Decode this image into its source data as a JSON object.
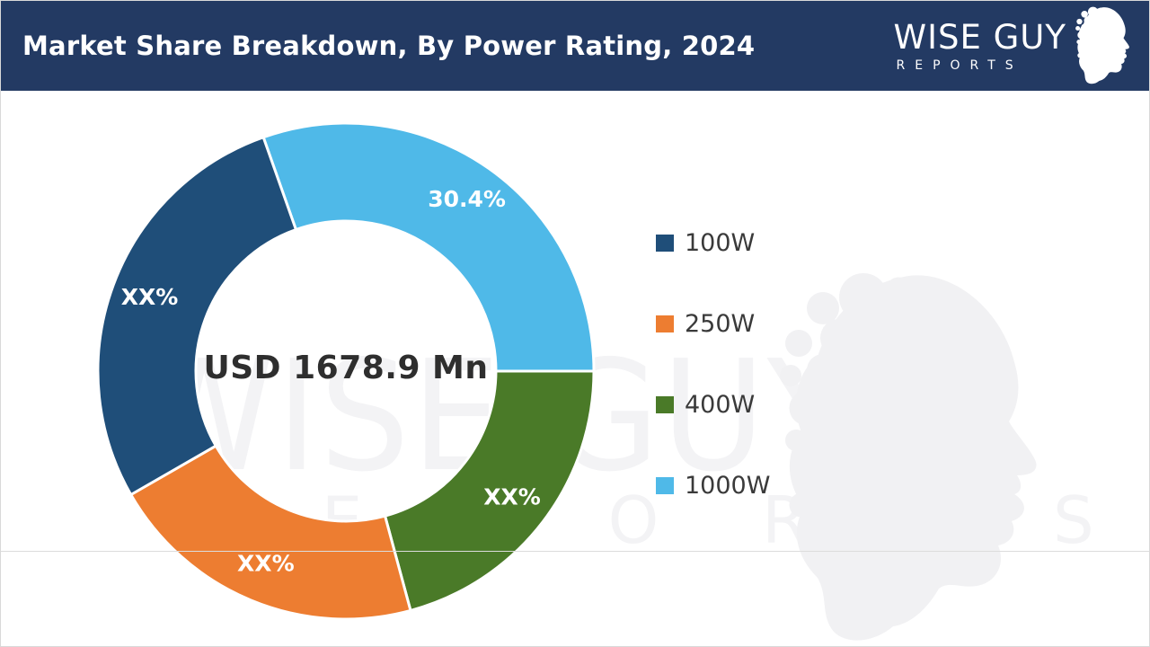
{
  "header": {
    "title": "Market Share Breakdown, By Power Rating, 2024",
    "logo": {
      "line1": "WISE GUY",
      "line2": "REPORTS"
    }
  },
  "watermark": {
    "line1": "WISE GUY",
    "line2": "R E P O R T S"
  },
  "colors": {
    "header_bg": "#233A63",
    "watermark": "#f2f2f4",
    "center_text": "#2e2e2e",
    "legend_text": "#3a3a3a",
    "slice_gap_stroke": "#ffffff"
  },
  "chart_data": {
    "type": "pie",
    "donut": true,
    "title": "Market Share Breakdown, By Power Rating, 2024",
    "center_label": "USD 1678.9 Mn",
    "legend_position": "right",
    "start_angle_deg": -19.44,
    "clockwise": true,
    "inner_radius_ratio": 0.605,
    "segments": [
      {
        "label": "100W",
        "display_value": "XX%",
        "estimated_percent": 27.9,
        "color": "#1F4E79"
      },
      {
        "label": "250W",
        "display_value": "XX%",
        "estimated_percent": 20.9,
        "color": "#ED7D31"
      },
      {
        "label": "400W",
        "display_value": "XX%",
        "estimated_percent": 20.8,
        "color": "#4A7A28"
      },
      {
        "label": "1000W",
        "display_value": "30.4%",
        "estimated_percent": 30.4,
        "color": "#4FB9E8"
      }
    ]
  }
}
